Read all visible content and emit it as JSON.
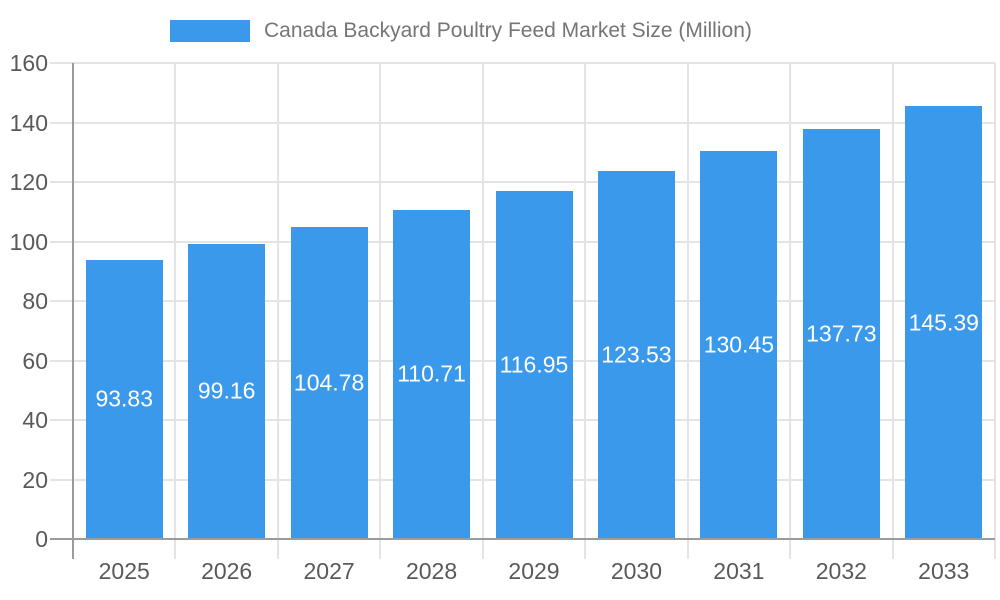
{
  "chart_data": {
    "type": "bar",
    "title": "Canada Backyard Poultry Feed Market Size (Million)",
    "categories": [
      "2025",
      "2026",
      "2027",
      "2028",
      "2029",
      "2030",
      "2031",
      "2032",
      "2033"
    ],
    "values": [
      93.83,
      99.16,
      104.78,
      110.71,
      116.95,
      123.53,
      130.45,
      137.73,
      145.39
    ],
    "value_labels": [
      "93.83",
      "99.16",
      "104.78",
      "110.71",
      "116.95",
      "123.53",
      "130.45",
      "137.73",
      "145.39"
    ],
    "xlabel": "",
    "ylabel": "",
    "ylim": [
      0,
      160
    ],
    "yticks": [
      0,
      20,
      40,
      60,
      80,
      100,
      120,
      140,
      160
    ],
    "grid": true,
    "legend_position": "top",
    "colors": {
      "bar": "#3b99ec",
      "gridline": "#e4e4e4",
      "axis": "#9b9b9b",
      "tick_label": "#595959",
      "legend_label": "#757575",
      "value_label": "#ffffff",
      "background": "#ffffff"
    }
  }
}
